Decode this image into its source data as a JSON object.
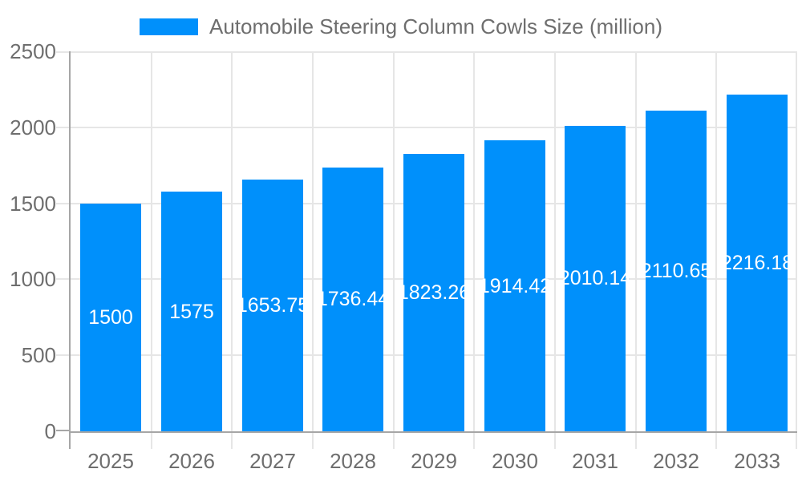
{
  "chart_data": {
    "type": "bar",
    "title": "Automobile Steering Column Cowls Size (million)",
    "legend": {
      "label": "Automobile Steering Column Cowls Size (million)",
      "position": "top"
    },
    "categories": [
      "2025",
      "2026",
      "2027",
      "2028",
      "2029",
      "2030",
      "2031",
      "2032",
      "2033"
    ],
    "values": [
      1500,
      1575,
      1653.75,
      1736.44,
      1823.26,
      1914.42,
      2010.14,
      2110.65,
      2216.18
    ],
    "data_labels": [
      "1500",
      "1575",
      "1653.75",
      "1736.44",
      "1823.26",
      "1914.42",
      "2010.14",
      "2110.65",
      "2216.18"
    ],
    "xlabel": "",
    "ylabel": "",
    "ylim": [
      0,
      2500
    ],
    "y_ticks": [
      0,
      500,
      1000,
      1500,
      2000,
      2500
    ],
    "y_tick_labels": [
      "0",
      "500",
      "1000",
      "1500",
      "2000",
      "2500"
    ],
    "grid": true,
    "colors": {
      "bar": "#0090FB",
      "data_label": "#FFFFFF",
      "axis_text": "#6E6E6E",
      "grid_line": "#E6E6E6",
      "axis_line": "#A6A6A6",
      "background": "#FFFFFF"
    }
  }
}
